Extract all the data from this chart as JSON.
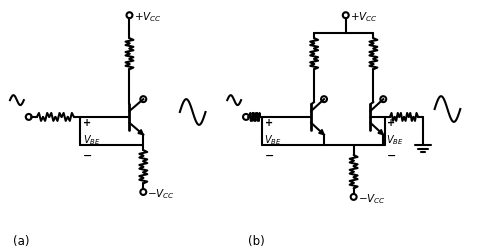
{
  "bg": "#ffffff",
  "line_color": "#000000",
  "lw": 1.5
}
